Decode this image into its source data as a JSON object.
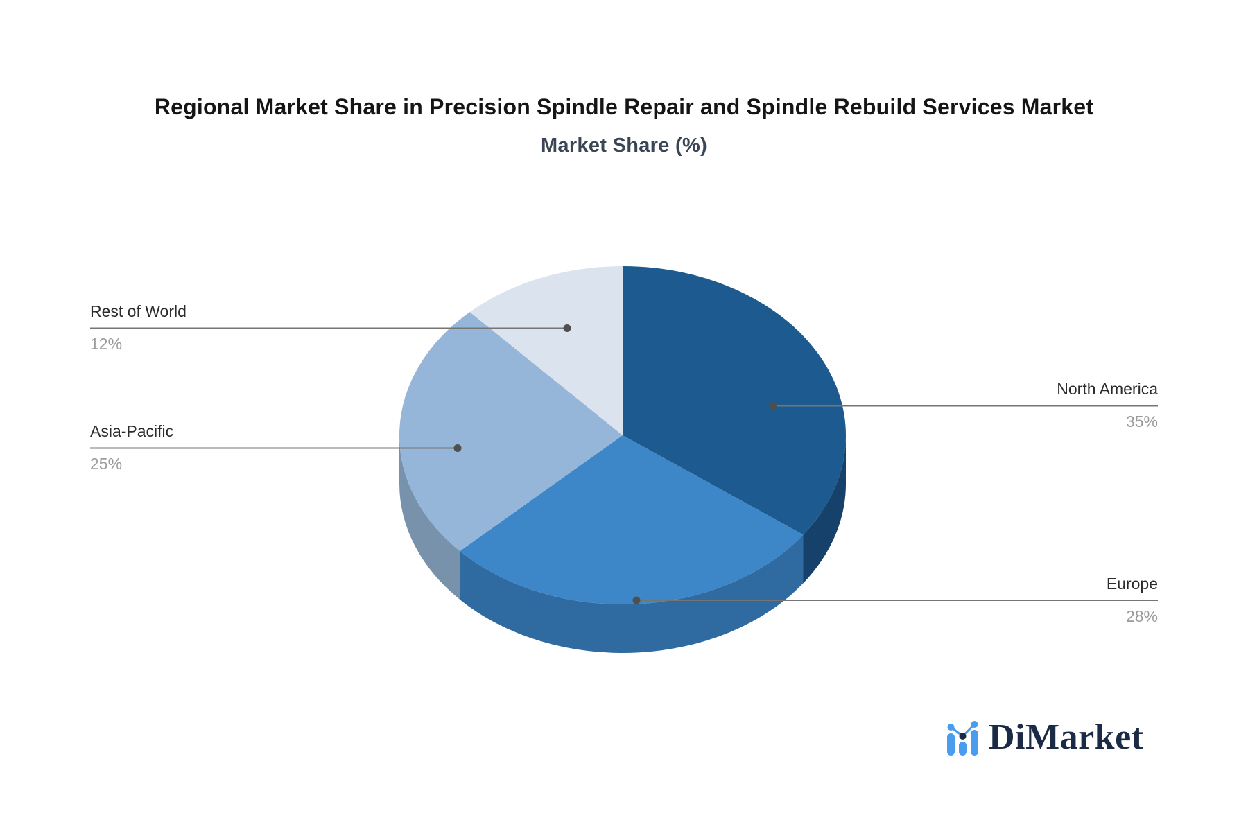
{
  "chart_data": {
    "type": "pie",
    "style": "3d",
    "title": "Regional Market Share in Precision Spindle Repair and Spindle Rebuild Services Market",
    "subtitle": "Market Share (%)",
    "categories": [
      "North America",
      "Europe",
      "Asia-Pacific",
      "Rest of World"
    ],
    "values": [
      35,
      28,
      25,
      12
    ],
    "labels_pct": [
      "35%",
      "28%",
      "25%",
      "12%"
    ],
    "unit": "%",
    "start_angle_deg": 0,
    "direction": "clockwise",
    "legend_position": "none",
    "colors": [
      "#1d5a8f",
      "#3d87c9",
      "#96b6d9",
      "#dbe3ee"
    ],
    "side_colors": [
      "#15416b",
      "#2f6ba0",
      "#7892ab",
      "#b7c4d6"
    ],
    "leader_line_color": "#757575",
    "dot_color": "#4f4f4f"
  },
  "branding": {
    "logo_text": "DiMarket",
    "logo_text_color": "#1c2b45",
    "icon_color": "#4a9cee",
    "icon_dot_dark_color": "#1c2b45"
  }
}
